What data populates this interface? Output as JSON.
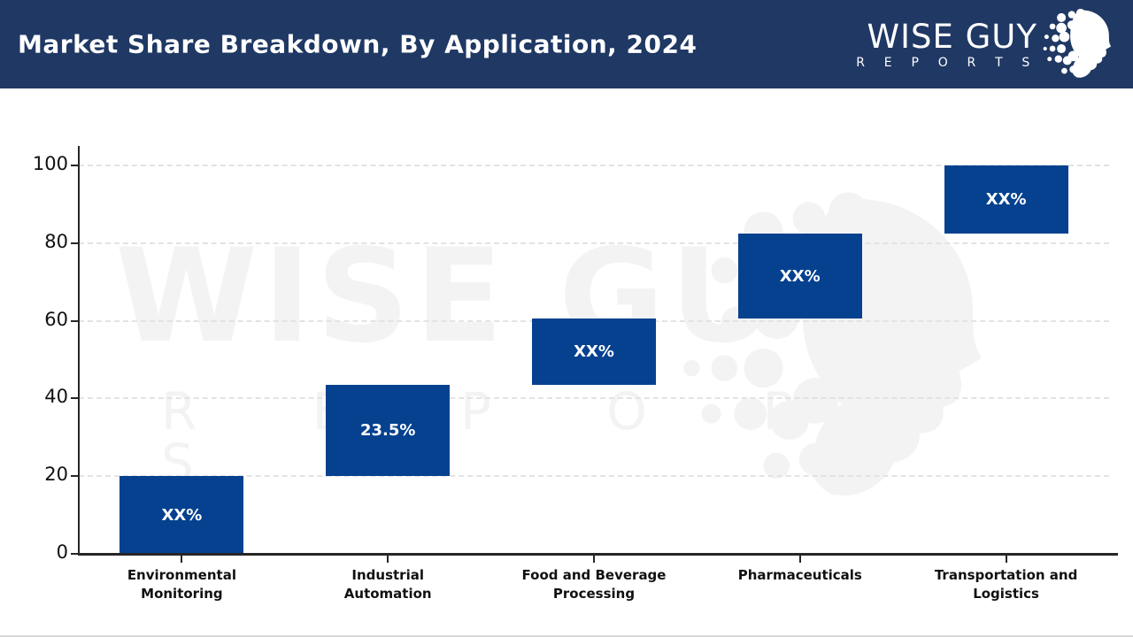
{
  "header": {
    "title": "Market Share Breakdown, By Application, 2024",
    "logo_line1": "WISE GUY",
    "logo_line2": "R E P O R T S"
  },
  "watermark": {
    "line1": "WISE GUY",
    "line2": "R E P O R T S"
  },
  "colors": {
    "header_bg": "#1f3864",
    "bar_color": "#05418f",
    "grid_color": "#e3e3e3",
    "axis_color": "#262626",
    "watermark_color": "#f3f3f3",
    "bar_label_color": "#ffffff"
  },
  "chart_data": {
    "type": "bar",
    "variant": "waterfall",
    "title": "Market Share Breakdown, By Application, 2024",
    "categories": [
      "Environmental Monitoring",
      "Industrial Automation",
      "Food and Beverage Processing",
      "Pharmaceuticals",
      "Transportation and Logistics"
    ],
    "category_lines": [
      [
        "Environmental",
        "Monitoring"
      ],
      [
        "Industrial",
        "Automation"
      ],
      [
        "Food and Beverage",
        "Processing"
      ],
      [
        "Pharmaceuticals"
      ],
      [
        "Transportation and",
        "Logistics"
      ]
    ],
    "starts": [
      0,
      20,
      43.5,
      60.5,
      82.5
    ],
    "values": [
      20,
      23.5,
      17,
      22,
      17.5
    ],
    "bar_labels": [
      "XX%",
      "23.5%",
      "XX%",
      "XX%",
      "XX%"
    ],
    "yticks": [
      0,
      20,
      40,
      60,
      80,
      100
    ],
    "ylim": [
      0,
      105
    ],
    "xlabel": "",
    "ylabel": "",
    "grid": true,
    "grid_style": "dashed",
    "legend_position": "none"
  }
}
